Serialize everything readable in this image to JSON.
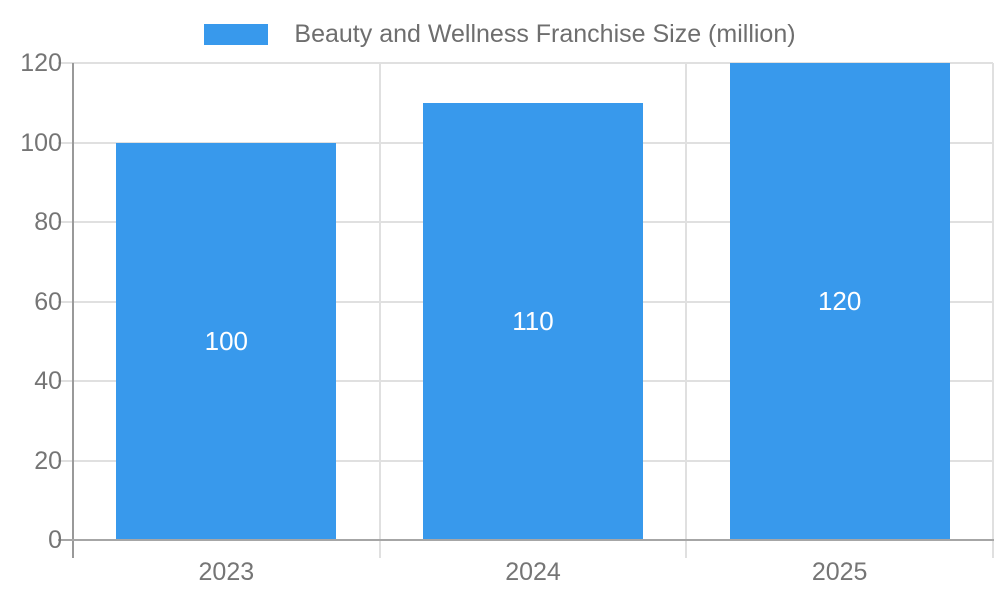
{
  "legend": {
    "label": "Beauty and Wellness Franchise Size (million)"
  },
  "chart_data": {
    "type": "bar",
    "title": "Beauty and Wellness Franchise Size (million)",
    "categories": [
      "2023",
      "2024",
      "2025"
    ],
    "values": [
      100,
      110,
      120
    ],
    "bar_value_labels": [
      "100",
      "110",
      "120"
    ],
    "xlabel": "",
    "ylabel": "",
    "ylim": [
      0,
      120
    ],
    "yticks": [
      0,
      20,
      40,
      60,
      80,
      100,
      120
    ],
    "grid": true,
    "legend_position": "top-center",
    "colors": {
      "bar": "#3899EC",
      "grid": "#e0e0e0",
      "axis_x": "#a6a6a6",
      "axis_y": "#999999",
      "axis_text": "#757575",
      "legend_text": "#6e6e6e",
      "bar_label_text": "#ffffff",
      "background": "#ffffff"
    }
  }
}
